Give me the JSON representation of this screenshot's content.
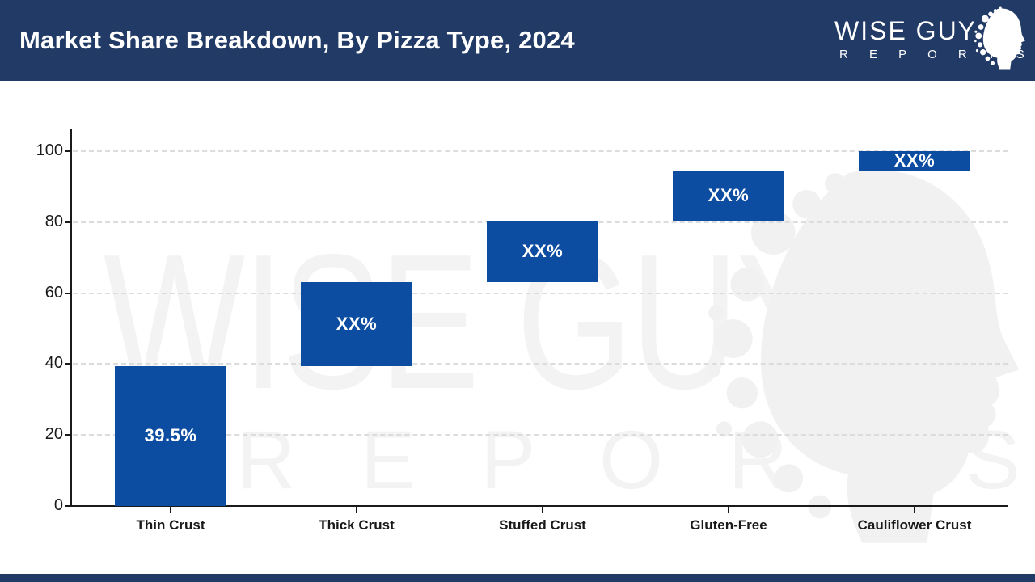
{
  "header": {
    "title": "Market Share Breakdown, By Pizza Type, 2024",
    "bg_color": "#213a66",
    "logo": {
      "line1": "WISE GUY",
      "line2": "R E P O R T S"
    }
  },
  "watermark": {
    "line1": "WISE GUY",
    "line2": "R E P O R T S"
  },
  "chart_data": {
    "type": "bar",
    "subtype": "waterfall",
    "title": "",
    "xlabel": "",
    "ylabel": "",
    "categories": [
      "Thin Crust",
      "Thick Crust",
      "Stuffed Crust",
      "Gluten-Free",
      "Cauliflower Crust"
    ],
    "segments": [
      {
        "category": "Thin Crust",
        "start": 0,
        "end": 39.5,
        "label": "39.5%"
      },
      {
        "category": "Thick Crust",
        "start": 39.5,
        "end": 63,
        "label": "XX%"
      },
      {
        "category": "Stuffed Crust",
        "start": 63,
        "end": 80.5,
        "label": "XX%"
      },
      {
        "category": "Gluten-Free",
        "start": 80.5,
        "end": 94.5,
        "label": "XX%"
      },
      {
        "category": "Cauliflower Crust",
        "start": 94.5,
        "end": 100,
        "label": "XX%"
      }
    ],
    "y_ticks": [
      0,
      20,
      40,
      60,
      80,
      100
    ],
    "ylim": [
      0,
      100
    ],
    "grid": "horizontal-dashed",
    "legend": "none",
    "bar_color": "#0c4da2",
    "bar_label_color": "#ffffff",
    "axis_color": "#1a1a1a",
    "gridline_color": "#dcdcdc"
  }
}
